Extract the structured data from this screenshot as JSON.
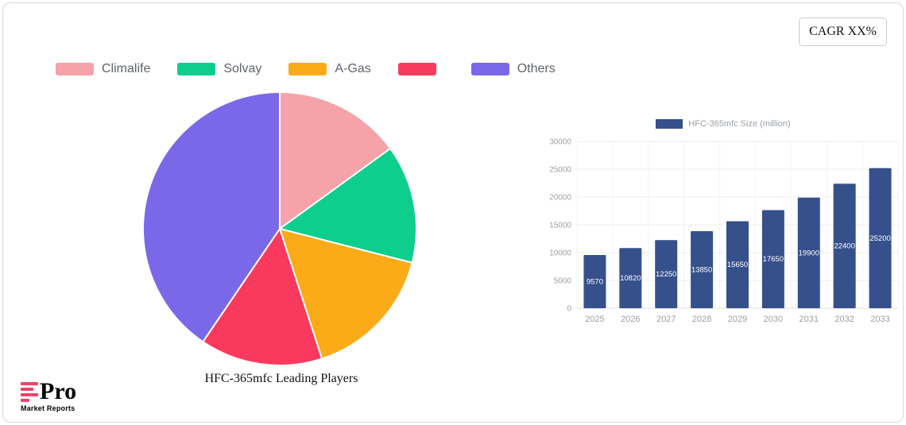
{
  "cagr": {
    "label": "CAGR XX%"
  },
  "logo": {
    "name": "Pro",
    "subtitle": "Market Reports",
    "accent": "#f0436b"
  },
  "chart_data": [
    {
      "type": "pie",
      "title": "HFC-365mfc Leading Players",
      "labels": [
        "Climalife",
        "Solvay",
        "A-Gas",
        "",
        "Others"
      ],
      "values": [
        15,
        14,
        16,
        14.5,
        40.5
      ],
      "colors": [
        "#f5a3a9",
        "#0dce8d",
        "#fbab17",
        "#f93a5e",
        "#7a68e8"
      ],
      "legend_position": "top",
      "slice_border_color": "#ffffff"
    },
    {
      "type": "bar",
      "legend": "HFC-365mfc Size (million)",
      "categories": [
        "2025",
        "2026",
        "2027",
        "2028",
        "2029",
        "2030",
        "2031",
        "2032",
        "2033"
      ],
      "values": [
        9570,
        10820,
        12250,
        13850,
        15650,
        17650,
        19900,
        22400,
        25200
      ],
      "ylim": [
        0,
        30000
      ],
      "ytick_step": 5000,
      "yticks": [
        "0",
        "5000",
        "10000",
        "15000",
        "20000",
        "25000",
        "30000"
      ],
      "bar_color": "#36508c",
      "value_label_color": "#ffffff",
      "axis_label_color": "#9aa0a6",
      "grid": true,
      "legend_position": "top"
    }
  ]
}
